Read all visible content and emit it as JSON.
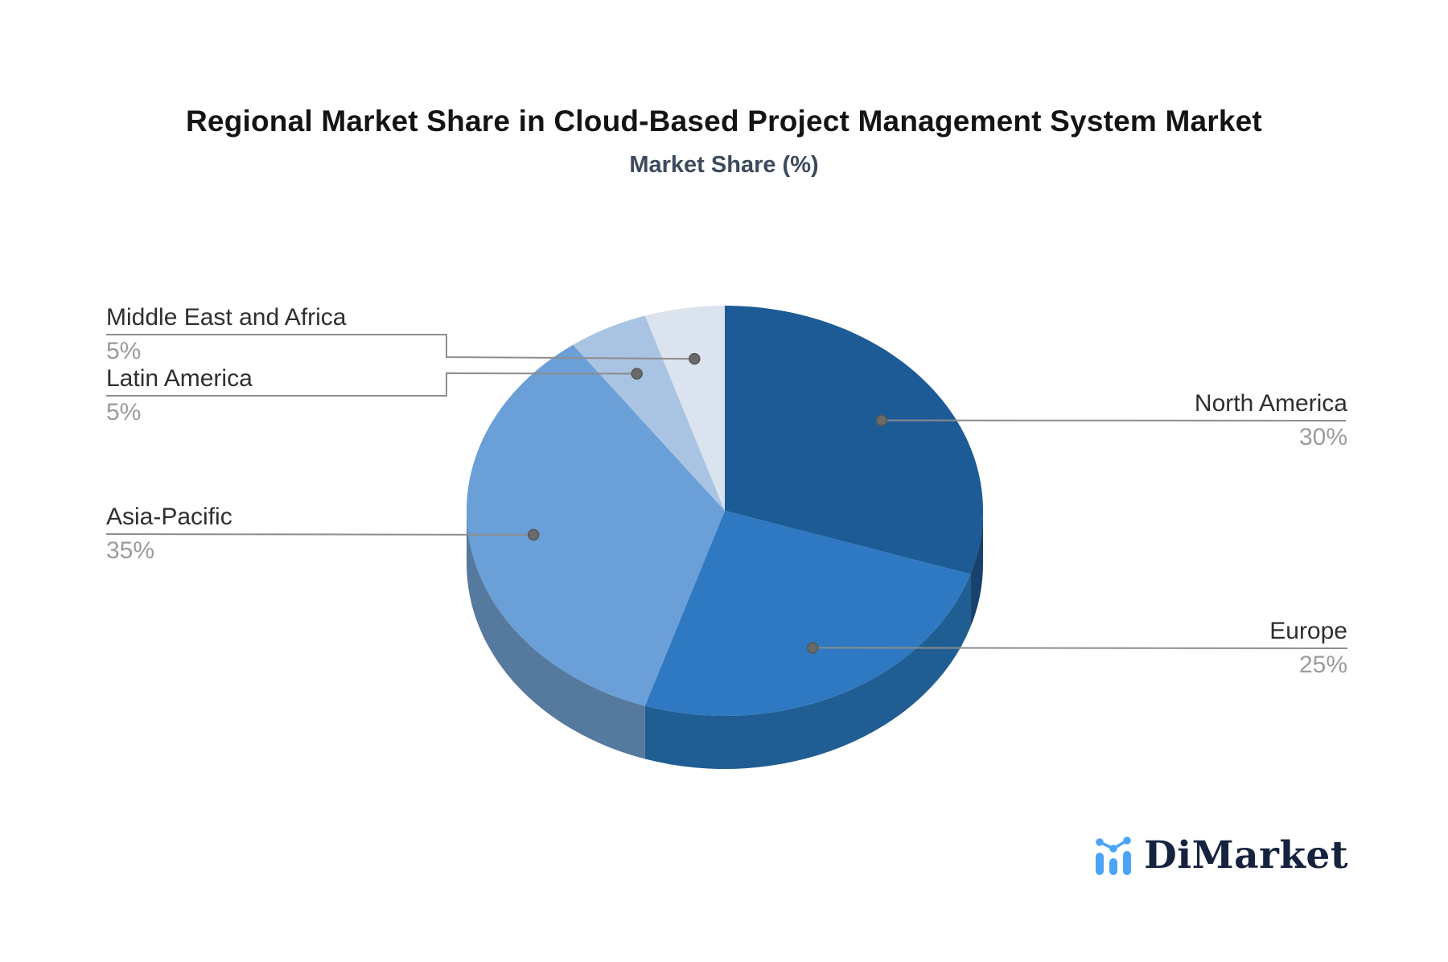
{
  "chart_data": {
    "type": "pie",
    "style": "3d",
    "title": "Regional Market Share in Cloud-Based Project Management System Market",
    "subtitle": "Market Share (%)",
    "unit": "%",
    "start_angle": "12-o'clock clockwise",
    "legend_position": "callout-labels",
    "slices": [
      {
        "label": "North America",
        "value": 30,
        "display": "30%",
        "color": "#1d5b97",
        "side_color": "#16426d"
      },
      {
        "label": "Europe",
        "value": 25,
        "display": "25%",
        "color": "#2e79c1",
        "side_color": "#205d93"
      },
      {
        "label": "Asia-Pacific",
        "value": 35,
        "display": "35%",
        "color": "#6b9fd7",
        "side_color": "#56799e"
      },
      {
        "label": "Latin America",
        "value": 5,
        "display": "5%",
        "color": "#a9c4e2",
        "side_color": "#7e9cbf"
      },
      {
        "label": "Middle East and Africa",
        "value": 5,
        "display": "5%",
        "color": "#dbe3ef",
        "side_color": "#aebdd2"
      }
    ],
    "leader_line_color": "#8d8d8d",
    "leader_dot_color": "#6a6a6a"
  },
  "branding": {
    "name": "DiMarket",
    "icon": "bar-line-chart-icon",
    "icon_color": "#4ba4f8",
    "text_color": "#16233e"
  }
}
